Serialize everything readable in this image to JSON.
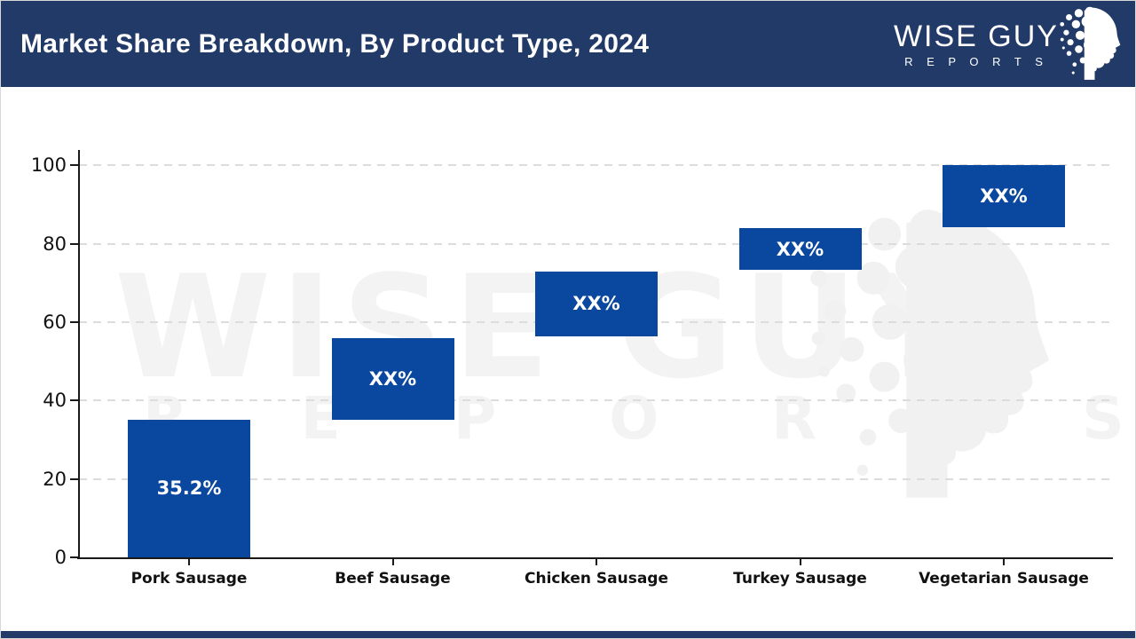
{
  "header": {
    "title": "Market Share Breakdown, By Product Type, 2024",
    "logo": {
      "wordmark": "WISE GUY",
      "subtitle": "R E P O R T S"
    }
  },
  "watermark": {
    "line1": "WISE GUY",
    "line2": "R E P O R T S"
  },
  "chart_data": {
    "type": "bar",
    "subtype": "waterfall",
    "title": "Market Share Breakdown, By Product Type, 2024",
    "xlabel": "",
    "ylabel": "",
    "categories": [
      "Pork Sausage",
      "Beef Sausage",
      "Chicken Sausage",
      "Turkey Sausage",
      "Vegetarian Sausage"
    ],
    "segments": [
      {
        "category": "Pork Sausage",
        "start": 0,
        "end": 35.2,
        "label": "35.2%"
      },
      {
        "category": "Beef Sausage",
        "start": 35.2,
        "end": 56.0,
        "label": "XX%"
      },
      {
        "category": "Chicken Sausage",
        "start": 56.3,
        "end": 73.0,
        "label": "XX%"
      },
      {
        "category": "Turkey Sausage",
        "start": 73.3,
        "end": 84.0,
        "label": "XX%"
      },
      {
        "category": "Vegetarian Sausage",
        "start": 84.2,
        "end": 100.0,
        "label": "XX%"
      }
    ],
    "yticks": [
      0,
      20,
      40,
      60,
      80,
      100
    ],
    "ylim": [
      0,
      103.5
    ],
    "grid": "horizontal-dashed",
    "legend": "none",
    "bar_color": "#0a479e",
    "bar_label_color": "#ffffff"
  },
  "colors": {
    "header_bg": "#223a68",
    "footer_bg": "#223a68",
    "bar": "#0a479e",
    "gridline": "#dcdcdc",
    "axis": "#1a1a1a",
    "watermark": "#f2f2f2"
  }
}
